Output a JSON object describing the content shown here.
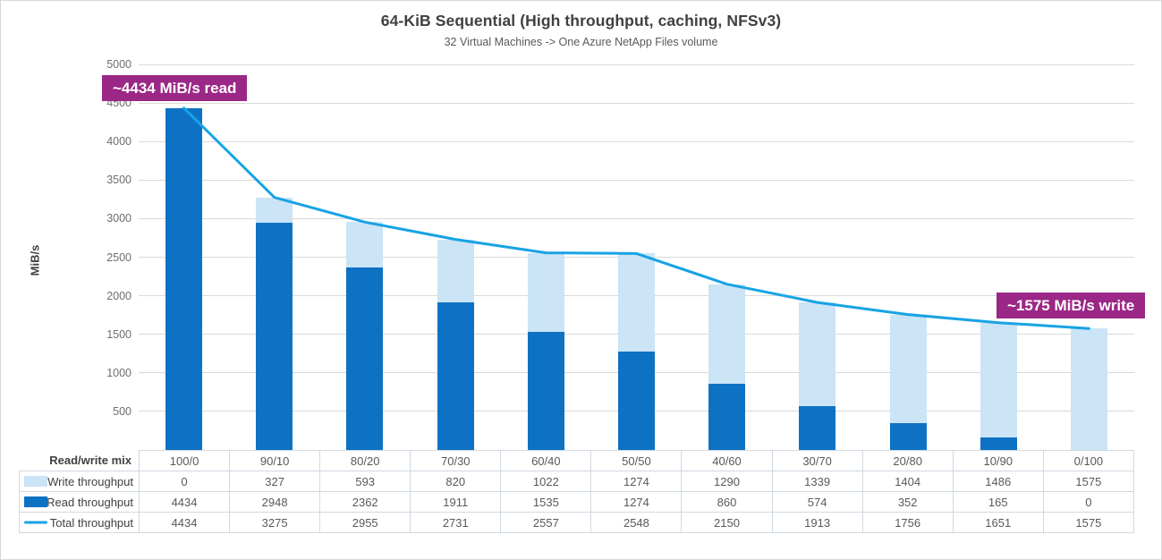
{
  "chart": {
    "title": "64-KiB Sequential (High throughput, caching, NFSv3)",
    "subtitle": "32 Virtual Machines -> One Azure NetApp Files volume",
    "y_axis_title": "MiB/s",
    "annotations": {
      "read_peak": "~4434 MiB/s read",
      "write_peak": "~1575 MiB/s write"
    },
    "colors": {
      "read_bar": "#0e72c4",
      "write_bar": "#cbe4f6",
      "total_line": "#18a3e4",
      "annotation_bg": "#9b2786",
      "gridline": "#d9d9d9",
      "table_border": "#d0d9e1"
    }
  },
  "chart_data": {
    "type": "bar",
    "subtype": "stacked-column-with-line-overlay-and-data-table",
    "title": "64-KiB Sequential (High throughput, caching, NFSv3)",
    "subtitle": "32 Virtual Machines -> One Azure NetApp Files volume",
    "categories_label": "Read/write mix",
    "categories": [
      "100/0",
      "90/10",
      "80/20",
      "70/30",
      "60/40",
      "50/50",
      "40/60",
      "30/70",
      "20/80",
      "10/90",
      "0/100"
    ],
    "series": [
      {
        "name": "Write throughput",
        "render": "bar-stacked-top",
        "color": "#cbe4f6",
        "values": [
          0,
          327,
          593,
          820,
          1022,
          1274,
          1290,
          1339,
          1404,
          1486,
          1575
        ]
      },
      {
        "name": "Read throughput",
        "render": "bar-stacked-bottom",
        "color": "#0e72c4",
        "values": [
          4434,
          2948,
          2362,
          1911,
          1535,
          1274,
          860,
          574,
          352,
          165,
          0
        ]
      },
      {
        "name": "Total throughput",
        "render": "line",
        "color": "#18a3e4",
        "values": [
          4434,
          3275,
          2955,
          2731,
          2557,
          2548,
          2150,
          1913,
          1756,
          1651,
          1575
        ]
      }
    ],
    "xlabel": "",
    "ylabel": "MiB/s",
    "ylim": [
      0,
      5000
    ],
    "ytick_step": 500,
    "grid": true,
    "legend_position": "data-table-left-column"
  }
}
